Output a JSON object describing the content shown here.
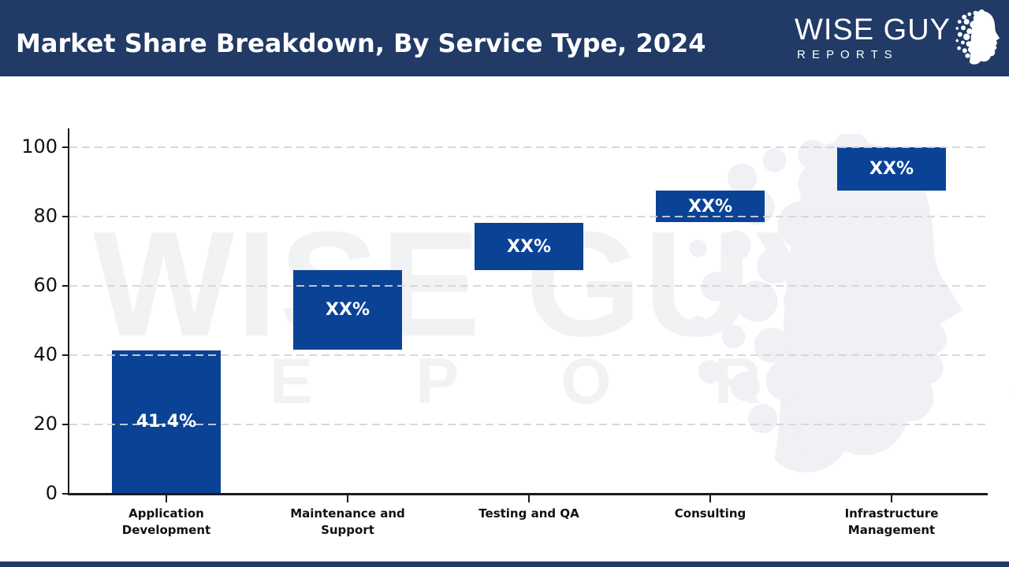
{
  "header": {
    "title": "Market Share Breakdown, By Service Type, 2024",
    "logo": {
      "brand_line1": "WISE GUY",
      "brand_line2": "R E P O R T S",
      "face_icon": "dotted-face-profile"
    }
  },
  "watermark": {
    "line1": "WISE GUY",
    "line2": "R E P O R T S",
    "face_icon": "dotted-face-profile"
  },
  "colors": {
    "header_bg": "#213a66",
    "footer_bg": "#213a66",
    "bar_fill": "#0a4296",
    "bar_label_text": "#ffffff",
    "axis_text": "#111111",
    "gridline": "#d4d4d4",
    "watermark": "#f1f2f4",
    "chart_bg": "#ffffff"
  },
  "chart_data": {
    "type": "bar",
    "subtype": "floating-waterfall",
    "title": "Market Share Breakdown, By Service Type, 2024",
    "xlabel": "",
    "ylabel": "",
    "ylim": [
      0,
      105.5
    ],
    "yticks": [
      0,
      20,
      40,
      60,
      80,
      100
    ],
    "grid": "horizontal-dashed",
    "grid_above_bars": true,
    "legend": null,
    "categories": [
      "Application Development",
      "Maintenance and Support",
      "Testing and QA",
      "Consulting",
      "Infrastructure Management"
    ],
    "bars": [
      {
        "category": "Application Development",
        "start": 0,
        "end": 41.4,
        "label": "41.4%"
      },
      {
        "category": "Maintenance and Support",
        "start": 41.6,
        "end": 64.5,
        "label": "XX%"
      },
      {
        "category": "Testing and QA",
        "start": 64.5,
        "end": 78.2,
        "label": "XX%"
      },
      {
        "category": "Consulting",
        "start": 78.4,
        "end": 87.5,
        "label": "XX%"
      },
      {
        "category": "Infrastructure Management",
        "start": 87.5,
        "end": 100,
        "label": "XX%"
      }
    ]
  }
}
